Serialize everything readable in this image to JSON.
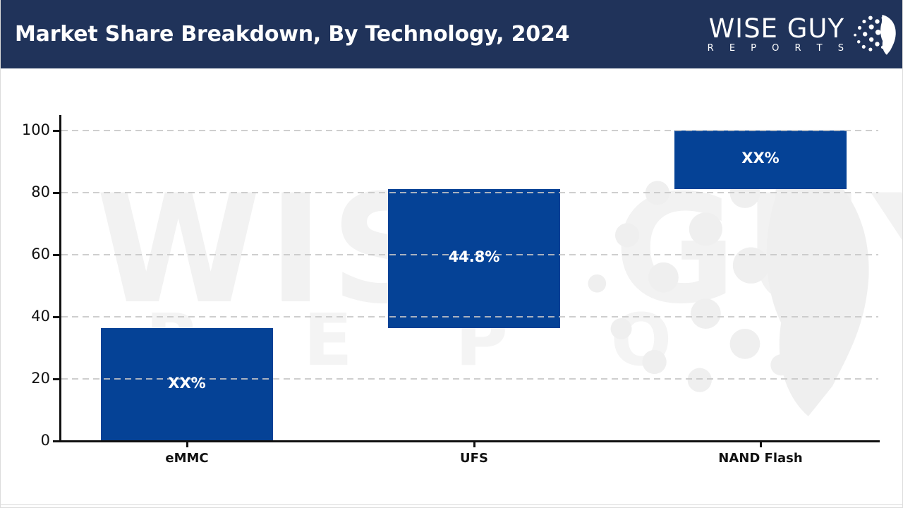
{
  "header": {
    "title": "Market Share Breakdown, By Technology, 2024",
    "background_color": "#20335a",
    "logo": {
      "line1": "WISE GUY",
      "line2": "R E P O R T S"
    }
  },
  "watermark": {
    "line1": "WISE GUY",
    "line2": "R E P O R T S"
  },
  "chart_data": {
    "type": "bar",
    "subtype": "waterfall",
    "title": "Market Share Breakdown, By Technology, 2024",
    "categories": [
      "eMMC",
      "UFS",
      "NAND Flash"
    ],
    "segments": [
      {
        "category": "eMMC",
        "start": 0,
        "end": 36.4,
        "label": "XX%"
      },
      {
        "category": "UFS",
        "start": 36.4,
        "end": 81.2,
        "label": "44.8%"
      },
      {
        "category": "NAND Flash",
        "start": 81.2,
        "end": 100,
        "label": "XX%"
      }
    ],
    "ylim": [
      0,
      100
    ],
    "yticks": [
      0,
      20,
      40,
      60,
      80,
      100
    ],
    "xlabel": "",
    "ylabel": "",
    "grid": "dashed-horizontal-over-bars",
    "legend": "none",
    "bar_color": "#054296",
    "bar_label_color": "#ffffff"
  }
}
